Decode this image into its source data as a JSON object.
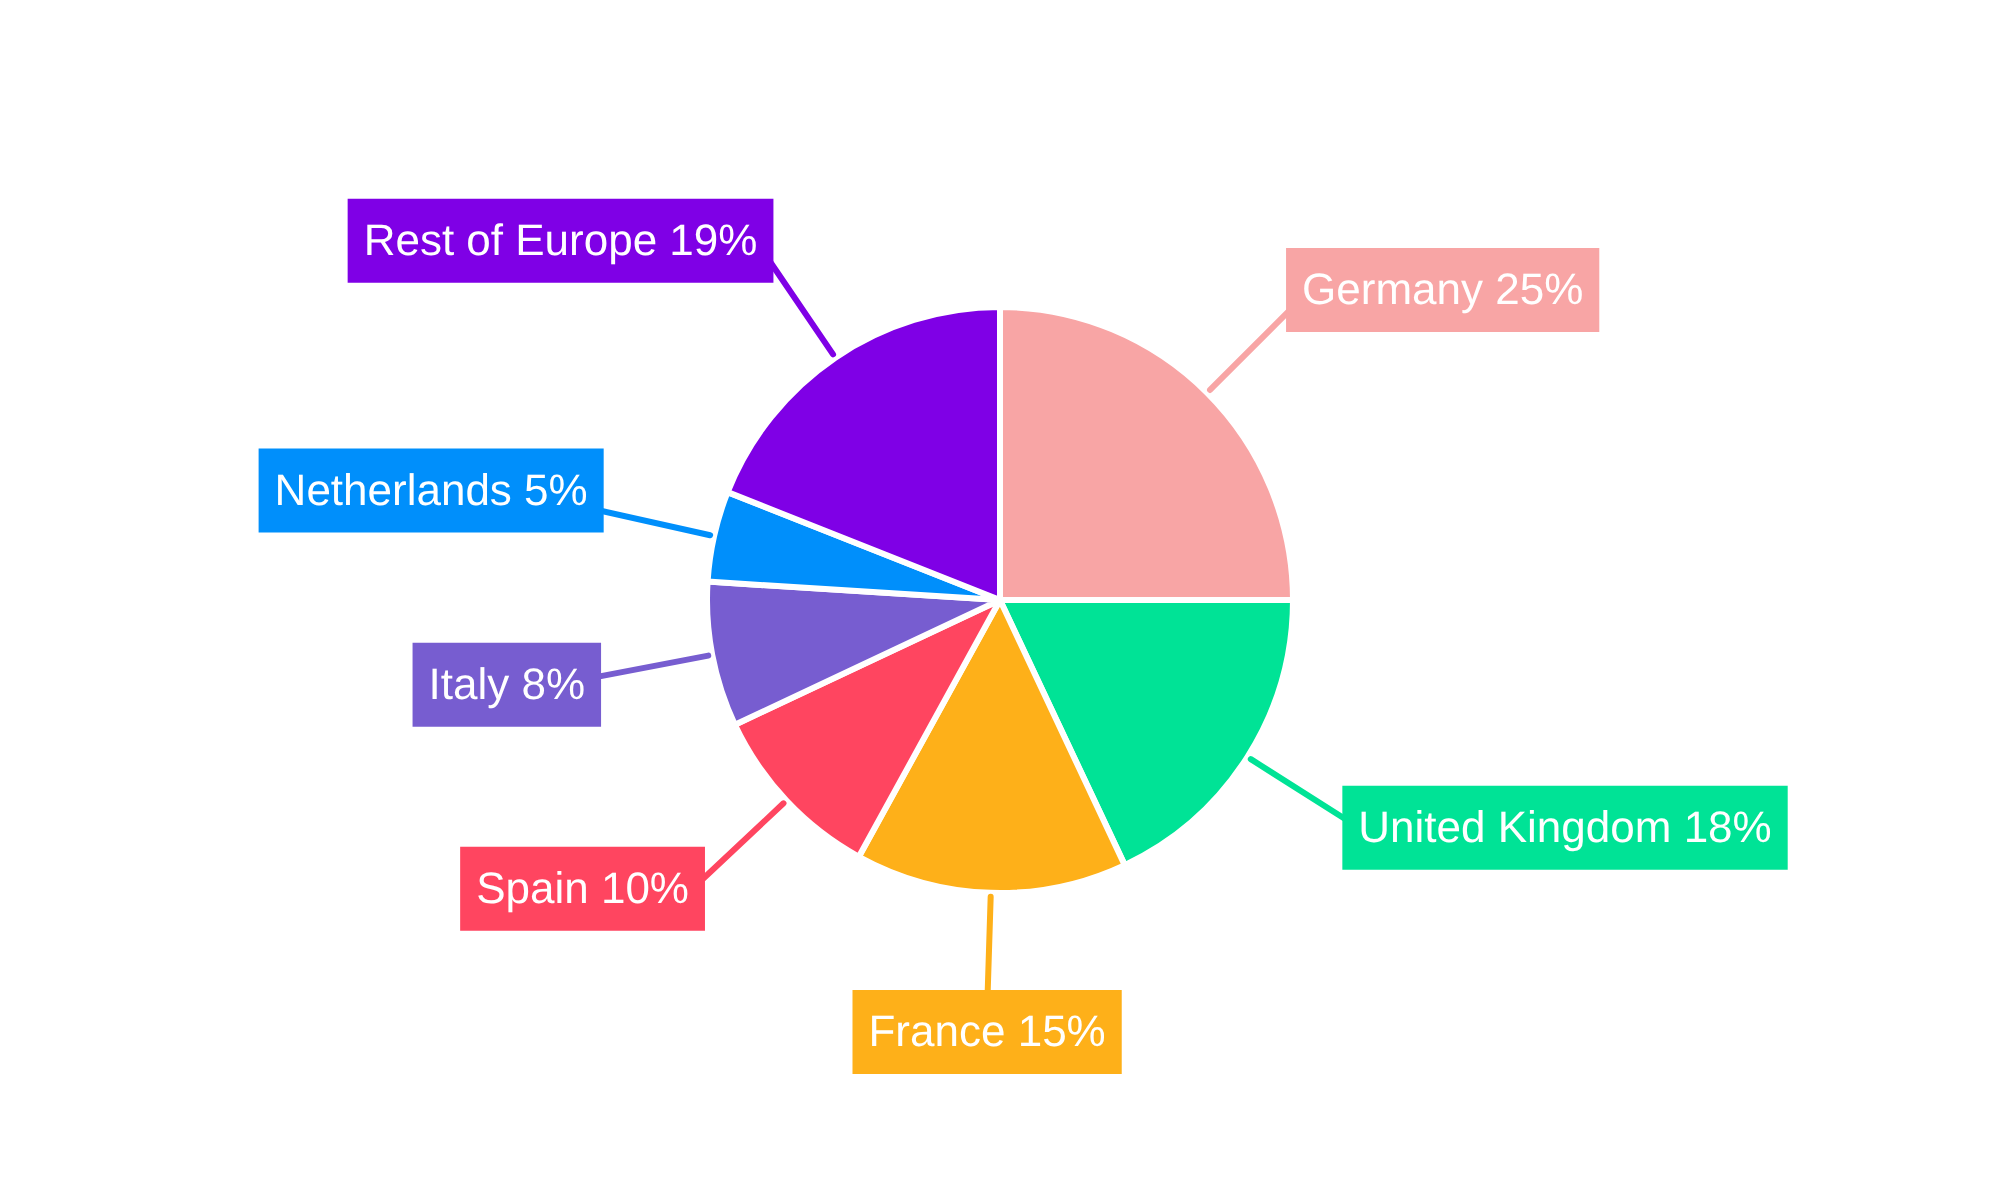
{
  "chart_data": {
    "type": "pie",
    "categories": [
      "Germany",
      "United Kingdom",
      "France",
      "Spain",
      "Italy",
      "Netherlands",
      "Rest of Europe"
    ],
    "values": [
      25,
      18,
      15,
      10,
      8,
      5,
      19
    ],
    "value_labels": [
      "25%",
      "18%",
      "15%",
      "10%",
      "8%",
      "5%",
      "19%"
    ],
    "colors": [
      "#f8a5a5",
      "#00e396",
      "#feb019",
      "#ff4560",
      "#775dd0",
      "#008ffb",
      "#7f00e6"
    ],
    "legend": false
  }
}
